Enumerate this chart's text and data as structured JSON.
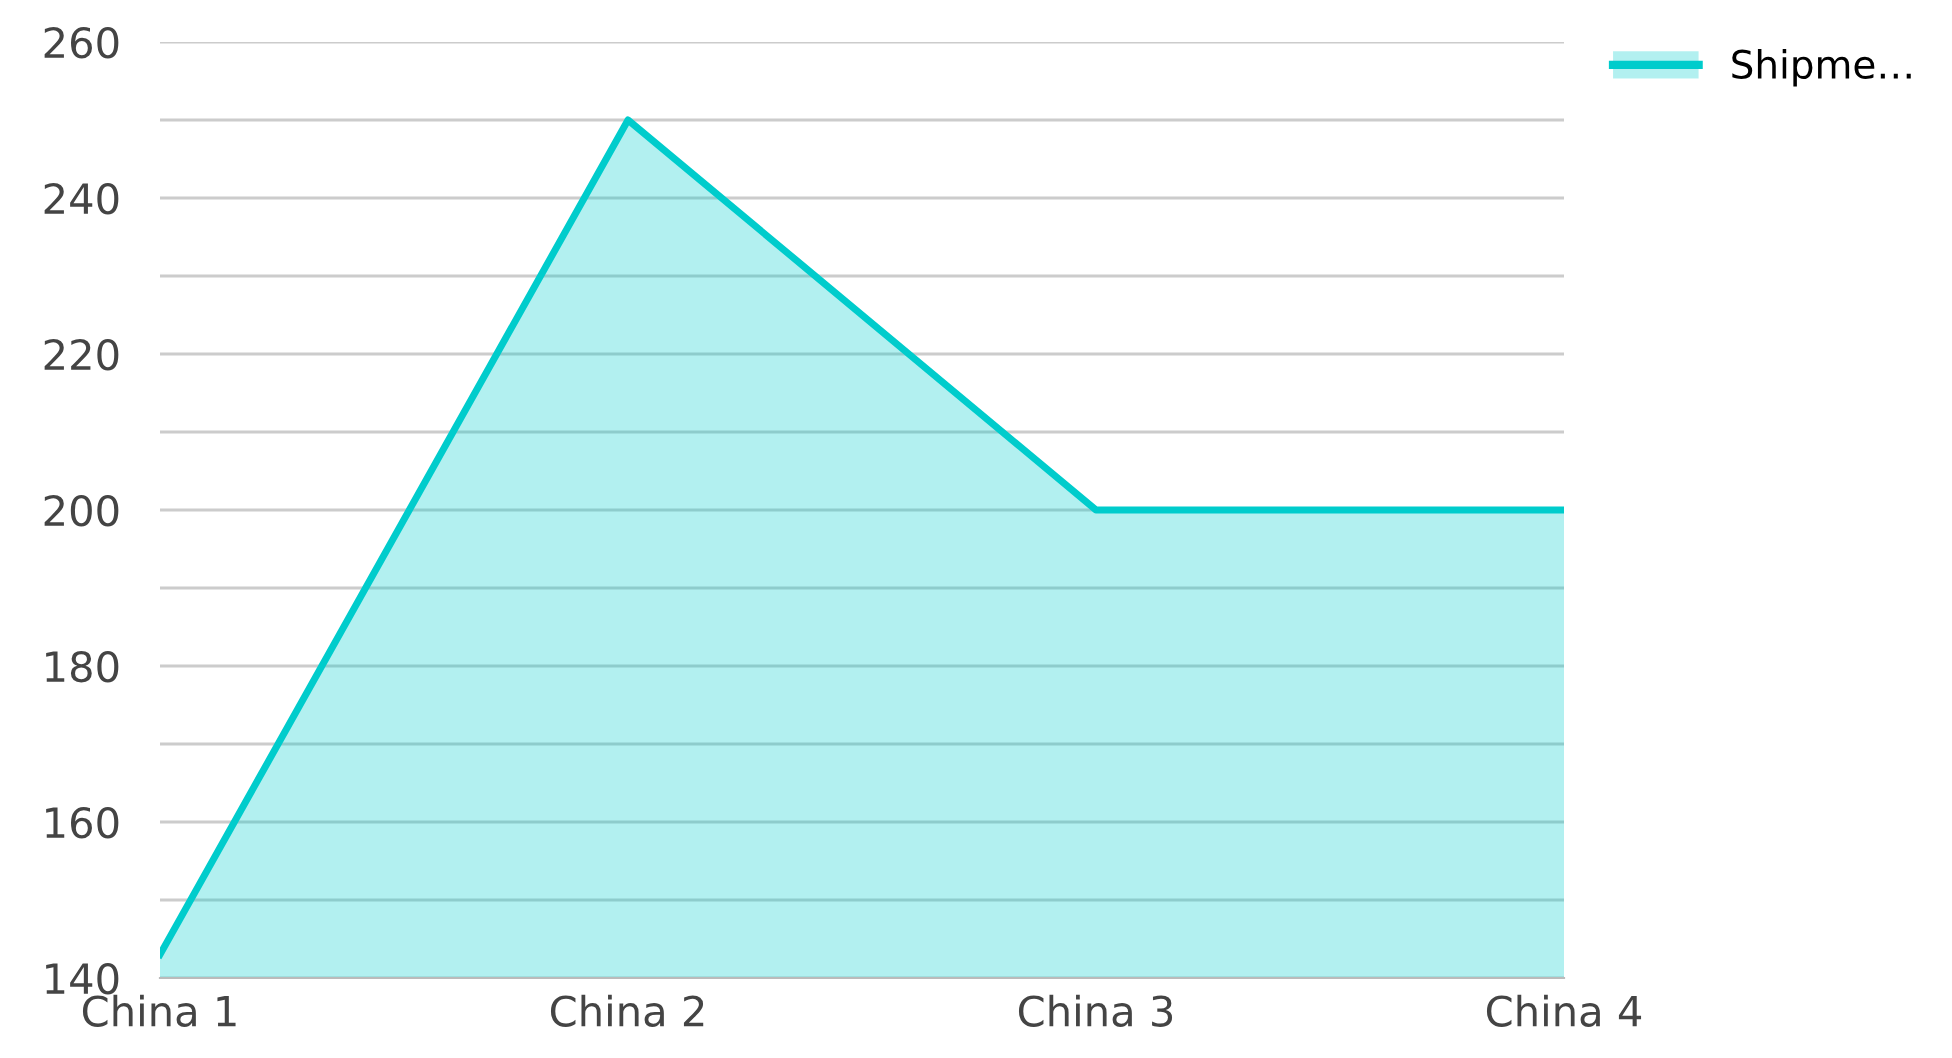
{
  "chart_data": {
    "type": "area",
    "categories": [
      "China 1",
      "China 2",
      "China 3",
      "China 4"
    ],
    "series": [
      {
        "name": "Shipme…",
        "color": "#00cccc",
        "values": [
          143,
          250,
          200,
          200
        ]
      }
    ],
    "ylim": [
      140,
      260
    ],
    "yticks": [
      140,
      {
        "value": 150,
        "label": null
      },
      160,
      {
        "value": 170,
        "label": null
      },
      180,
      {
        "value": 190,
        "label": null
      },
      200,
      {
        "value": 210,
        "label": null
      },
      220,
      {
        "value": 230,
        "label": null
      },
      240,
      {
        "value": 250,
        "label": null
      },
      260
    ],
    "grid": "y",
    "legend": "top right"
  }
}
